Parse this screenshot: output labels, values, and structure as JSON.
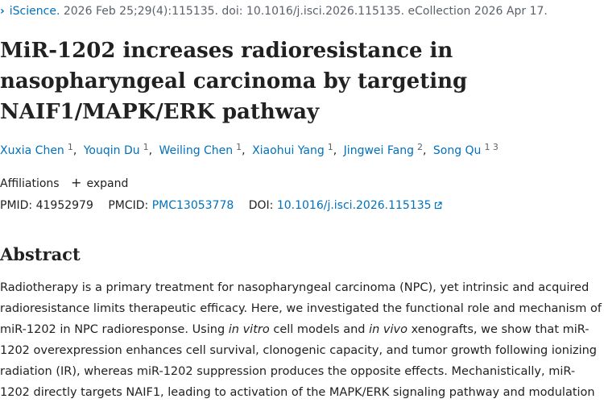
{
  "citation": {
    "journal": "iScience.",
    "details": "2026 Feb 25;29(4):115135. doi: 10.1016/j.isci.2026.115135. eCollection 2026 Apr 17."
  },
  "article": {
    "title": "MiR-1202 increases radioresistance in nasopharyngeal carcinoma by targeting NAIF1/MAPK/ERK pathway"
  },
  "authors": [
    {
      "name": "Xuxia Chen",
      "sup": "1"
    },
    {
      "name": "Youqin Du",
      "sup": "1"
    },
    {
      "name": "Weiling Chen",
      "sup": "1"
    },
    {
      "name": "Xiaohui Yang",
      "sup": "1"
    },
    {
      "name": "Jingwei Fang",
      "sup": "2"
    },
    {
      "name": "Song Qu",
      "sup": "1 3"
    }
  ],
  "affiliations": {
    "label": "Affiliations",
    "expand_label": "expand"
  },
  "identifiers": {
    "pmid_label": "PMID:",
    "pmid": "41952979",
    "pmcid_label": "PMCID:",
    "pmcid": "PMC13053778",
    "doi_label": "DOI:",
    "doi": "10.1016/j.isci.2026.115135"
  },
  "abstract": {
    "heading": "Abstract",
    "p1": "Radiotherapy is a primary treatment for nasopharyngeal carcinoma (NPC), yet intrinsic and acquired radioresistance limits therapeutic efficacy. Here, we investigated the functional role and mechanism of miR-1202 in NPC radioresponse. Using ",
    "em1": "in vitro",
    "p2": " cell models and ",
    "em2": "in vivo",
    "p3": " xenografts, we show that miR-1202 overexpression enhances cell survival, clonogenic capacity, and tumor growth following ionizing radiation (IR), whereas miR-1202 suppression produces the opposite effects. Mechanistically, miR-1202 directly targets NAIF1, leading to activation of the MAPK/ERK signaling pathway and modulation"
  },
  "icons": {
    "journal_chevron": "chevron-right-icon",
    "affiliations_expand": "plus-icon",
    "doi_external": "external-link-icon"
  },
  "colors": {
    "link": "#0071bc",
    "text": "#212121",
    "muted": "#5b616b"
  }
}
